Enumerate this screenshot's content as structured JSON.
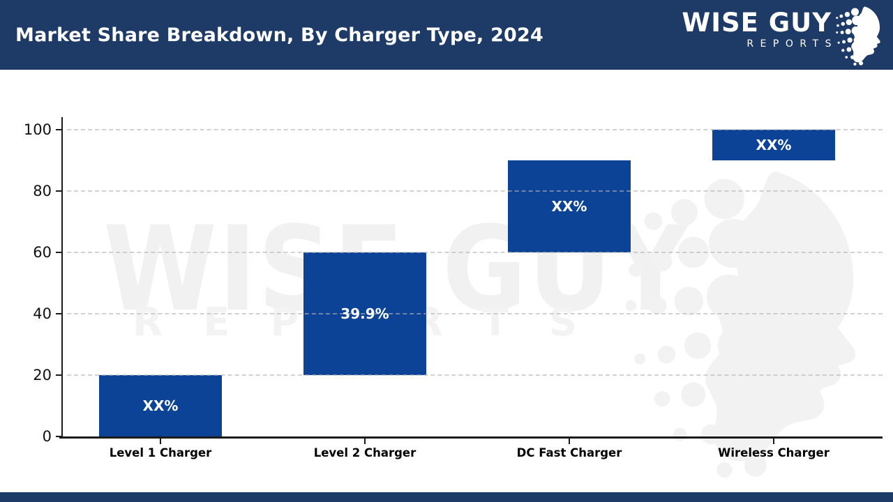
{
  "header": {
    "title": "Market Share Breakdown, By Charger Type, 2024"
  },
  "brand": {
    "name_top": "WISE GUY",
    "name_bottom": "REPORTS"
  },
  "watermark": {
    "text_top": "WISE GUY",
    "text_bottom": "REPORTS"
  },
  "chart_data": {
    "type": "bar",
    "variant": "waterfall",
    "title": "Market Share Breakdown, By Charger Type, 2024",
    "categories": [
      "Level 1 Charger",
      "Level 2 Charger",
      "DC Fast Charger",
      "Wireless Charger"
    ],
    "bars": [
      {
        "category": "Level 1 Charger",
        "start": 0,
        "end": 20,
        "label": "XX%"
      },
      {
        "category": "Level 2 Charger",
        "start": 20,
        "end": 59.9,
        "label": "39.9%"
      },
      {
        "category": "DC Fast Charger",
        "start": 59.9,
        "end": 89.9,
        "label": "XX%"
      },
      {
        "category": "Wireless Charger",
        "start": 89.9,
        "end": 100,
        "label": "XX%"
      }
    ],
    "xlabel": "",
    "ylabel": "",
    "yticks": [
      0,
      20,
      40,
      60,
      80,
      100
    ],
    "ylim": [
      0,
      105
    ],
    "grid": {
      "horizontal": true,
      "style": "dashed",
      "color": "#c8c8c8"
    },
    "legend": "none",
    "bar_color": "#0c4396"
  },
  "colors": {
    "header_bg": "#1e3a66",
    "footer_bg": "#1e3a66",
    "bar": "#0c4396",
    "axis": "#1a1a1a",
    "grid": "#c8c8c8",
    "tick_label": "#111111",
    "watermark": "#f1f1f1"
  }
}
